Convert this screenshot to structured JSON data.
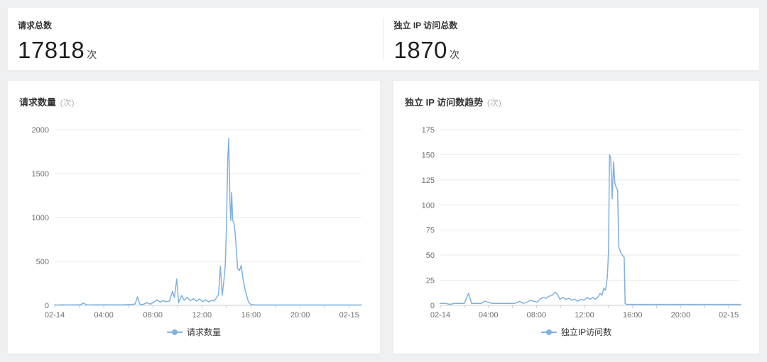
{
  "stats": {
    "requests": {
      "label": "请求总数",
      "value": "17818",
      "unit": "次"
    },
    "unique_ips": {
      "label": "独立 IP 访问总数",
      "value": "1870",
      "unit": "次"
    }
  },
  "colors": {
    "line_blue": "#7fb1e2",
    "grid": "#e9e9e9",
    "axis": "#c9ccd0",
    "card_bg": "#ffffff",
    "page_bg": "#eef0f1"
  },
  "chart_data": [
    {
      "type": "line",
      "title": "请求数量",
      "unit_suffix": "(次)",
      "legend": "请求数量",
      "color": "#7fb1e2",
      "xlabel": "",
      "ylabel": "",
      "xlim_hours": [
        0,
        25
      ],
      "ylim": [
        0,
        2000
      ],
      "y_ticks": [
        0,
        500,
        1000,
        1500,
        2000
      ],
      "x_tick_hours": [
        0,
        4,
        8,
        12,
        16,
        20,
        24
      ],
      "x_tick_labels": [
        "02-14",
        "04:00",
        "08:00",
        "12:00",
        "16:00",
        "20:00",
        "02-15"
      ],
      "grid": true,
      "legend_position": "bottom",
      "points": [
        [
          0,
          5
        ],
        [
          0.3,
          4
        ],
        [
          0.7,
          6
        ],
        [
          1,
          4
        ],
        [
          1.4,
          6
        ],
        [
          1.8,
          5
        ],
        [
          2.1,
          8
        ],
        [
          2.35,
          25
        ],
        [
          2.6,
          6
        ],
        [
          3,
          5
        ],
        [
          3.4,
          6
        ],
        [
          3.8,
          5
        ],
        [
          4.2,
          7
        ],
        [
          4.6,
          5
        ],
        [
          5,
          6
        ],
        [
          5.4,
          5
        ],
        [
          5.8,
          8
        ],
        [
          6.2,
          10
        ],
        [
          6.55,
          15
        ],
        [
          6.75,
          95
        ],
        [
          6.95,
          12
        ],
        [
          7.2,
          10
        ],
        [
          7.5,
          30
        ],
        [
          7.8,
          14
        ],
        [
          8.1,
          38
        ],
        [
          8.35,
          62
        ],
        [
          8.6,
          35
        ],
        [
          8.85,
          55
        ],
        [
          9.1,
          40
        ],
        [
          9.35,
          48
        ],
        [
          9.6,
          160
        ],
        [
          9.75,
          90
        ],
        [
          9.95,
          300
        ],
        [
          10.1,
          28
        ],
        [
          10.35,
          112
        ],
        [
          10.55,
          58
        ],
        [
          10.8,
          92
        ],
        [
          11.05,
          52
        ],
        [
          11.3,
          76
        ],
        [
          11.55,
          48
        ],
        [
          11.8,
          72
        ],
        [
          12.05,
          42
        ],
        [
          12.3,
          62
        ],
        [
          12.55,
          38
        ],
        [
          12.8,
          58
        ],
        [
          13,
          48
        ],
        [
          13.2,
          92
        ],
        [
          13.35,
          120
        ],
        [
          13.5,
          445
        ],
        [
          13.65,
          115
        ],
        [
          13.8,
          300
        ],
        [
          13.9,
          460
        ],
        [
          14,
          900
        ],
        [
          14.1,
          1630
        ],
        [
          14.18,
          1900
        ],
        [
          14.28,
          1180
        ],
        [
          14.35,
          965
        ],
        [
          14.42,
          1285
        ],
        [
          14.5,
          970
        ],
        [
          14.6,
          940
        ],
        [
          14.7,
          830
        ],
        [
          14.8,
          640
        ],
        [
          14.9,
          420
        ],
        [
          15.05,
          395
        ],
        [
          15.2,
          455
        ],
        [
          15.35,
          300
        ],
        [
          15.5,
          190
        ],
        [
          15.65,
          110
        ],
        [
          15.8,
          35
        ],
        [
          16,
          8
        ],
        [
          16.5,
          4
        ],
        [
          17,
          4
        ],
        [
          18,
          4
        ],
        [
          19,
          4
        ],
        [
          20,
          4
        ],
        [
          21,
          4
        ],
        [
          22,
          4
        ],
        [
          23,
          4
        ],
        [
          24,
          4
        ],
        [
          25,
          4
        ]
      ]
    },
    {
      "type": "line",
      "title": "独立 IP 访问数趋势",
      "unit_suffix": "(次)",
      "legend": "独立IP访问数",
      "color": "#7fb1e2",
      "xlabel": "",
      "ylabel": "",
      "xlim_hours": [
        0,
        25
      ],
      "ylim": [
        0,
        175
      ],
      "y_ticks": [
        0,
        25,
        50,
        75,
        100,
        125,
        150,
        175
      ],
      "x_tick_hours": [
        0,
        4,
        8,
        12,
        16,
        20,
        24
      ],
      "x_tick_labels": [
        "02-14",
        "04:00",
        "08:00",
        "12:00",
        "16:00",
        "20:00",
        "02-15"
      ],
      "grid": true,
      "legend_position": "bottom",
      "points": [
        [
          0,
          2
        ],
        [
          0.4,
          2
        ],
        [
          0.8,
          1
        ],
        [
          1.2,
          2
        ],
        [
          1.6,
          2
        ],
        [
          2,
          2
        ],
        [
          2.35,
          12
        ],
        [
          2.6,
          2
        ],
        [
          3,
          2
        ],
        [
          3.4,
          2
        ],
        [
          3.7,
          4
        ],
        [
          4,
          3
        ],
        [
          4.3,
          2
        ],
        [
          4.7,
          2
        ],
        [
          5,
          2
        ],
        [
          5.4,
          2
        ],
        [
          5.8,
          2
        ],
        [
          6.2,
          2
        ],
        [
          6.6,
          4
        ],
        [
          6.9,
          2
        ],
        [
          7.2,
          3
        ],
        [
          7.5,
          5
        ],
        [
          7.8,
          4
        ],
        [
          8.05,
          3
        ],
        [
          8.3,
          6
        ],
        [
          8.55,
          8
        ],
        [
          8.8,
          7
        ],
        [
          9.05,
          9
        ],
        [
          9.3,
          10
        ],
        [
          9.55,
          13
        ],
        [
          9.75,
          11
        ],
        [
          9.95,
          6
        ],
        [
          10.2,
          8
        ],
        [
          10.45,
          6
        ],
        [
          10.7,
          7
        ],
        [
          10.95,
          5
        ],
        [
          11.2,
          6
        ],
        [
          11.45,
          4
        ],
        [
          11.7,
          6
        ],
        [
          11.95,
          5
        ],
        [
          12.2,
          8
        ],
        [
          12.45,
          6
        ],
        [
          12.7,
          8
        ],
        [
          12.9,
          6
        ],
        [
          13.1,
          8
        ],
        [
          13.3,
          12
        ],
        [
          13.45,
          10
        ],
        [
          13.6,
          17
        ],
        [
          13.75,
          15
        ],
        [
          13.9,
          28
        ],
        [
          14,
          55
        ],
        [
          14.08,
          150
        ],
        [
          14.18,
          147
        ],
        [
          14.3,
          106
        ],
        [
          14.42,
          143
        ],
        [
          14.52,
          122
        ],
        [
          14.65,
          117
        ],
        [
          14.75,
          115
        ],
        [
          14.85,
          58
        ],
        [
          15,
          53
        ],
        [
          15.15,
          50
        ],
        [
          15.3,
          48
        ],
        [
          15.38,
          2
        ],
        [
          15.5,
          1
        ],
        [
          16,
          1
        ],
        [
          17,
          1
        ],
        [
          18,
          1
        ],
        [
          19,
          1
        ],
        [
          20,
          1
        ],
        [
          21,
          1
        ],
        [
          22,
          1
        ],
        [
          23,
          1
        ],
        [
          24,
          1
        ],
        [
          25,
          1
        ]
      ]
    }
  ]
}
